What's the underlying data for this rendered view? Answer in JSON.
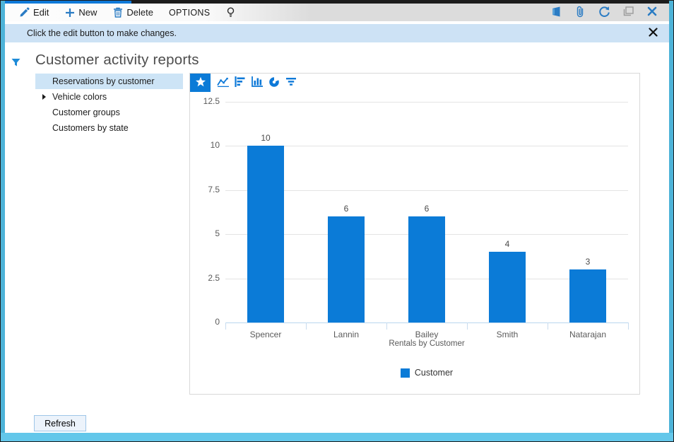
{
  "toolbar": {
    "edit_label": "Edit",
    "new_label": "New",
    "delete_label": "Delete",
    "options_label": "OPTIONS",
    "left_icons": [
      "edit-pencil-icon",
      "plus-icon",
      "trash-icon",
      "lightbulb-icon"
    ],
    "right_icons": [
      "dynamics-logo-icon",
      "paperclip-icon",
      "refresh-icon",
      "restore-window-icon",
      "close-icon"
    ]
  },
  "notification": {
    "message": "Click the edit button to make changes.",
    "close_icon": "close-icon"
  },
  "page": {
    "title": "Customer activity reports",
    "filter_icon": "filter-funnel-icon"
  },
  "sidebar": {
    "items": [
      {
        "label": "Reservations by customer",
        "selected": true,
        "expandable": false
      },
      {
        "label": "Vehicle colors",
        "selected": false,
        "expandable": true
      },
      {
        "label": "Customer groups",
        "selected": false,
        "expandable": false
      },
      {
        "label": "Customers by state",
        "selected": false,
        "expandable": false
      }
    ]
  },
  "chart_toolbar": {
    "icons": [
      "favorite-star-icon",
      "line-chart-icon",
      "bar-chart-horizontal-icon",
      "column-chart-icon",
      "doughnut-chart-icon",
      "funnel-chart-icon"
    ],
    "selected": "favorite-star-icon"
  },
  "chart_data": {
    "type": "bar",
    "categories": [
      "Spencer",
      "Lannin",
      "Bailey",
      "Smith",
      "Natarajan"
    ],
    "series": [
      {
        "name": "Customer",
        "values": [
          10,
          6,
          6,
          4,
          3
        ]
      }
    ],
    "data_labels": [
      "10",
      "6",
      "6",
      "4",
      "3"
    ],
    "title": "",
    "xlabel": "Rentals by Customer",
    "ylabel": "",
    "yticks": [
      0,
      2.5,
      5,
      7.5,
      10,
      12.5
    ],
    "ylim": [
      0,
      12.5
    ],
    "grid": true,
    "legend_position": "bottom",
    "bar_color": "#0b7bd7"
  },
  "footer": {
    "refresh_label": "Refresh"
  },
  "colors": {
    "accent_blue": "#0b7bd7",
    "selection_blue": "#cde4f6",
    "notification_blue": "#cde2f5",
    "frame_teal": "#4db3d8",
    "frame_cyan": "#63c7ea"
  }
}
